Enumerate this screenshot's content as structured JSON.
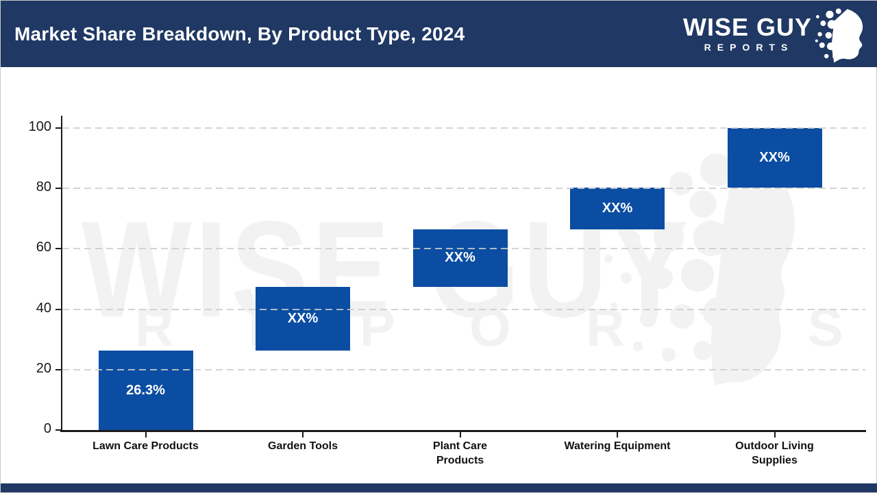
{
  "header": {
    "title": "Market Share Breakdown, By Product Type, 2024",
    "logo": {
      "line1": "WISE GUY",
      "line2": "REPORTS"
    }
  },
  "watermark": {
    "line1": "WISE GUY",
    "line2": "R E P O R T S"
  },
  "colors": {
    "header_bg": "#1F3864",
    "footer_bg": "#1F3864",
    "bar": "#0B4DA2",
    "bar_label": "#FFFFFF",
    "axis": "#1A1A1A",
    "gridline": "#D5D5D5",
    "watermark": "#F2F2F2"
  },
  "chart_data": {
    "type": "bar",
    "subtype": "waterfall",
    "title": "Market Share Breakdown, By Product Type, 2024",
    "xlabel": "",
    "ylabel": "",
    "ylim": [
      0,
      104.5
    ],
    "yticks": [
      0,
      20,
      40,
      60,
      80,
      100
    ],
    "grid": "horizontal-dashed",
    "legend": "none",
    "categories": [
      "Lawn Care Products",
      "Garden Tools",
      "Plant Care Products",
      "Watering Equipment",
      "Outdoor Living Supplies"
    ],
    "tick_label_lines": [
      [
        "Lawn Care Products"
      ],
      [
        "Garden Tools"
      ],
      [
        "Plant Care",
        "Products"
      ],
      [
        "Watering Equipment"
      ],
      [
        "Outdoor Living",
        "Supplies"
      ]
    ],
    "segments": [
      {
        "category": "Lawn Care Products",
        "start": 0,
        "end": 26.3,
        "value": 26.3,
        "label": "26.3%"
      },
      {
        "category": "Garden Tools",
        "start": 26.3,
        "end": 47.5,
        "value": 21.2,
        "label": "XX%"
      },
      {
        "category": "Plant Care Products",
        "start": 47.5,
        "end": 66.5,
        "value": 19.0,
        "label": "XX%"
      },
      {
        "category": "Watering Equipment",
        "start": 66.5,
        "end": 80.2,
        "value": 13.7,
        "label": "XX%"
      },
      {
        "category": "Outdoor Living Supplies",
        "start": 80.2,
        "end": 100,
        "value": 19.8,
        "label": "XX%"
      }
    ]
  }
}
